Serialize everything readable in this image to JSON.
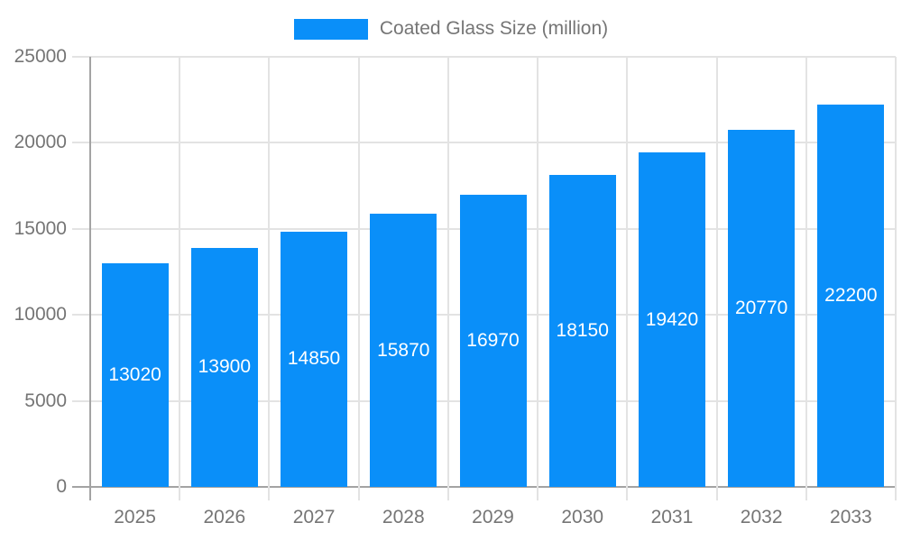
{
  "legend": {
    "label": "Coated Glass Size (million)"
  },
  "colors": {
    "bar": "#0a8ff9",
    "grid": "#e3e3e3",
    "axis": "#a3a3a3",
    "tick_label": "#757575",
    "bar_label": "#ffffff",
    "background": "#ffffff"
  },
  "chart_data": {
    "type": "bar",
    "categories": [
      "2025",
      "2026",
      "2027",
      "2028",
      "2029",
      "2030",
      "2031",
      "2032",
      "2033"
    ],
    "values": [
      13020,
      13900,
      14850,
      15870,
      16970,
      18150,
      19420,
      20770,
      22200
    ],
    "title": "",
    "xlabel": "",
    "ylabel": "",
    "legend_label": "Coated Glass Size (million)",
    "legend_position": "top-center",
    "ylim": [
      0,
      25000
    ],
    "yticks": [
      0,
      5000,
      10000,
      15000,
      20000,
      25000
    ],
    "grid": true,
    "bar_value_labels": "inside-center"
  }
}
